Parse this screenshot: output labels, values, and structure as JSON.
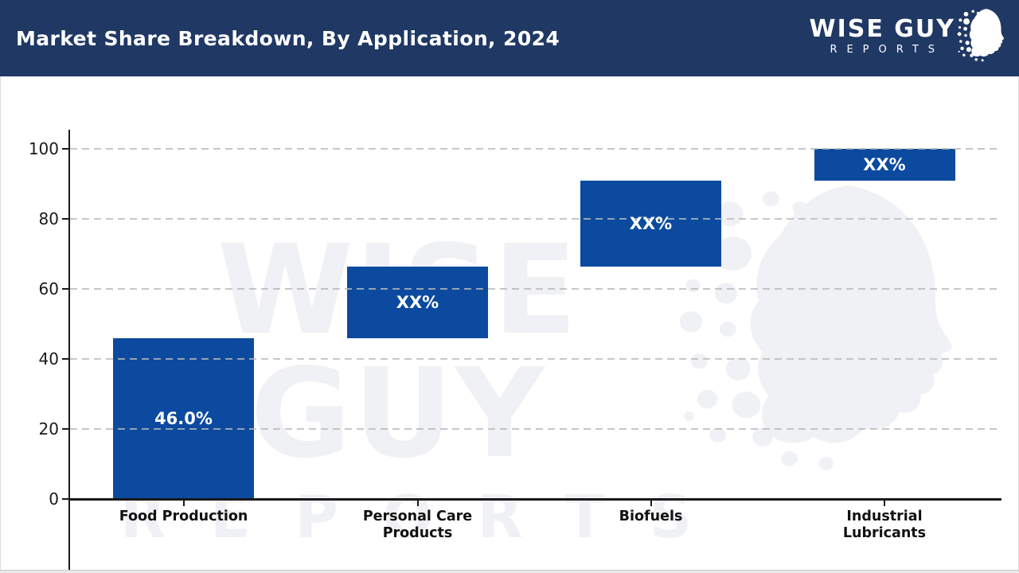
{
  "header": {
    "title": "Market Share Breakdown, By Application, 2024",
    "logo": {
      "line1": "WISE GUY",
      "line2": "REPORTS"
    }
  },
  "watermark": {
    "line1": "WISE GUY",
    "line2": "REPORTS"
  },
  "colors": {
    "header_bg": "#203864",
    "bar": "#0b4a9f",
    "bar_label": "#ffffff",
    "axis": "#1a1a1a",
    "tick_label": "#1a1a1a",
    "grid": "#d9d9d9",
    "watermark": "#f0f1f4"
  },
  "chart_data": {
    "type": "bar",
    "subtype": "waterfall",
    "title": "Market Share Breakdown, By Application, 2024",
    "xlabel": "",
    "ylabel": "",
    "ylim": [
      0,
      100
    ],
    "yticks": [
      0,
      20,
      40,
      60,
      80,
      100
    ],
    "grid": "horizontal-dashed",
    "legend": "none",
    "categories": [
      "Food Production",
      "Personal Care Products",
      "Biofuels",
      "Industrial Lubricants"
    ],
    "category_label_lines": [
      [
        "Food Production"
      ],
      [
        "Personal Care",
        "Products"
      ],
      [
        "Biofuels"
      ],
      [
        "Industrial",
        "Lubricants"
      ]
    ],
    "values": [
      {
        "category": "Food Production",
        "start": 0,
        "end": 46.0,
        "label": "46.0%"
      },
      {
        "category": "Personal Care Products",
        "start": 46.0,
        "end": 66.4,
        "label": "XX%"
      },
      {
        "category": "Biofuels",
        "start": 66.4,
        "end": 90.9,
        "label": "XX%"
      },
      {
        "category": "Industrial Lubricants",
        "start": 90.9,
        "end": 100.0,
        "label": "XX%"
      }
    ]
  }
}
